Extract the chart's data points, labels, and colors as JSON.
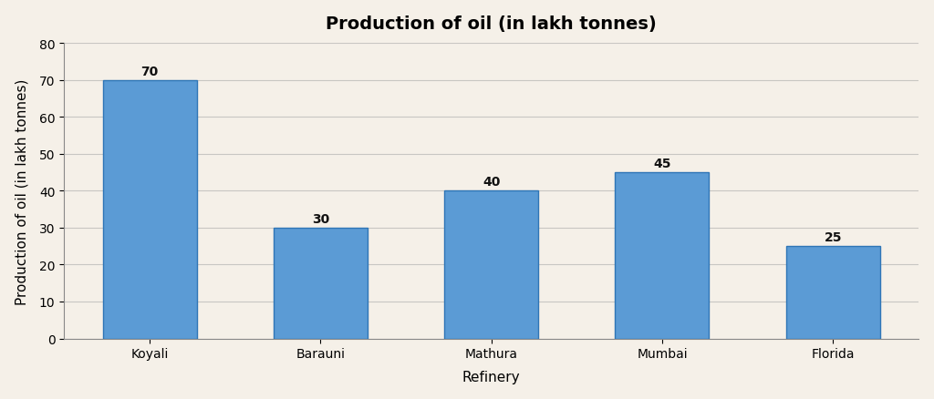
{
  "title": "Production of oil (in lakh tonnes)",
  "xlabel": "Refinery",
  "ylabel": "Production of oil (in lakh tonnes)",
  "categories": [
    "Koyali",
    "Barauni",
    "Mathura",
    "Mumbai",
    "Florida"
  ],
  "values": [
    70,
    30,
    40,
    45,
    25
  ],
  "bar_color": "#5b9bd5",
  "bar_edge_color": "#2e75b6",
  "ylim": [
    0,
    80
  ],
  "yticks": [
    0,
    10,
    20,
    30,
    40,
    50,
    60,
    70,
    80
  ],
  "grid": true,
  "background_color": "#f5f0e8",
  "title_fontsize": 14,
  "label_fontsize": 11,
  "tick_fontsize": 10,
  "bar_width": 0.55
}
